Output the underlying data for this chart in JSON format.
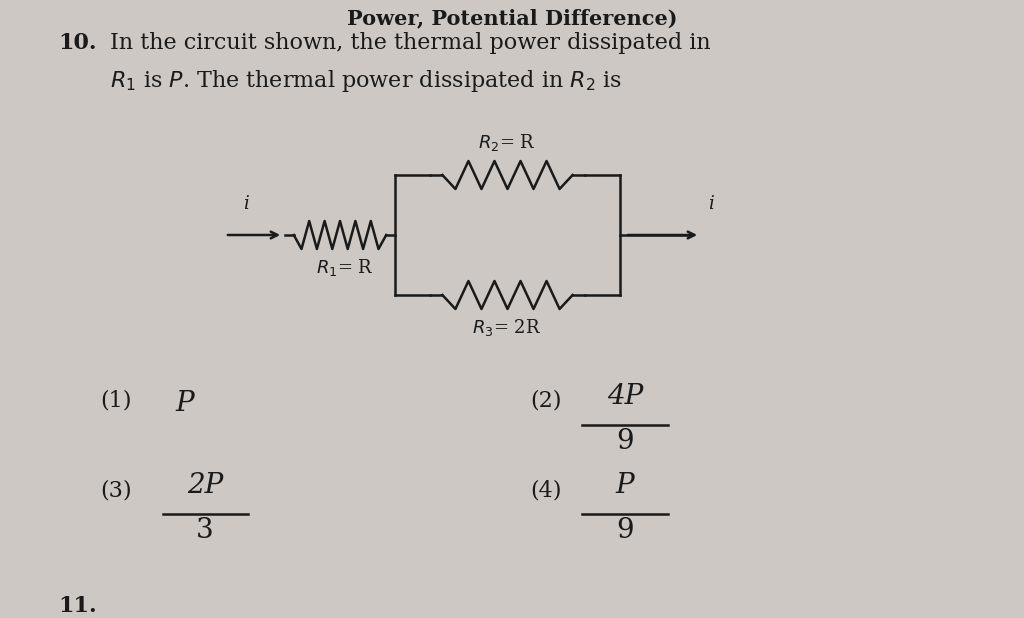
{
  "bg_color": "#cdc8c4",
  "title_partial": "Power, Potential Difference)",
  "q_num": "10.",
  "line1": "In the circuit shown, the thermal power dissipated in",
  "line2_a": "R",
  "line2_b": " is P. The thermal power dissipated in R",
  "line2_c": " is",
  "text_color": "#1a1a1a",
  "font_size_main": 16,
  "circuit": {
    "r1_label": "R",
    "r1_sub": "1",
    "r1_val": "= R",
    "r2_label": "R",
    "r2_sub": "2",
    "r2_val": "= R",
    "r3_label": "R",
    "r3_sub": "3",
    "r3_val": "= 2R"
  },
  "opt1_num": "(1)",
  "opt1_val": "P",
  "opt2_num": "(2)",
  "opt2_num_text": "4P",
  "opt2_den_text": "9",
  "opt3_num": "(3)",
  "opt3_num_text": "2P",
  "opt3_den_text": "3",
  "opt4_num": "(4)",
  "opt4_num_text": "P",
  "opt4_den_text": "9",
  "footer": "11."
}
